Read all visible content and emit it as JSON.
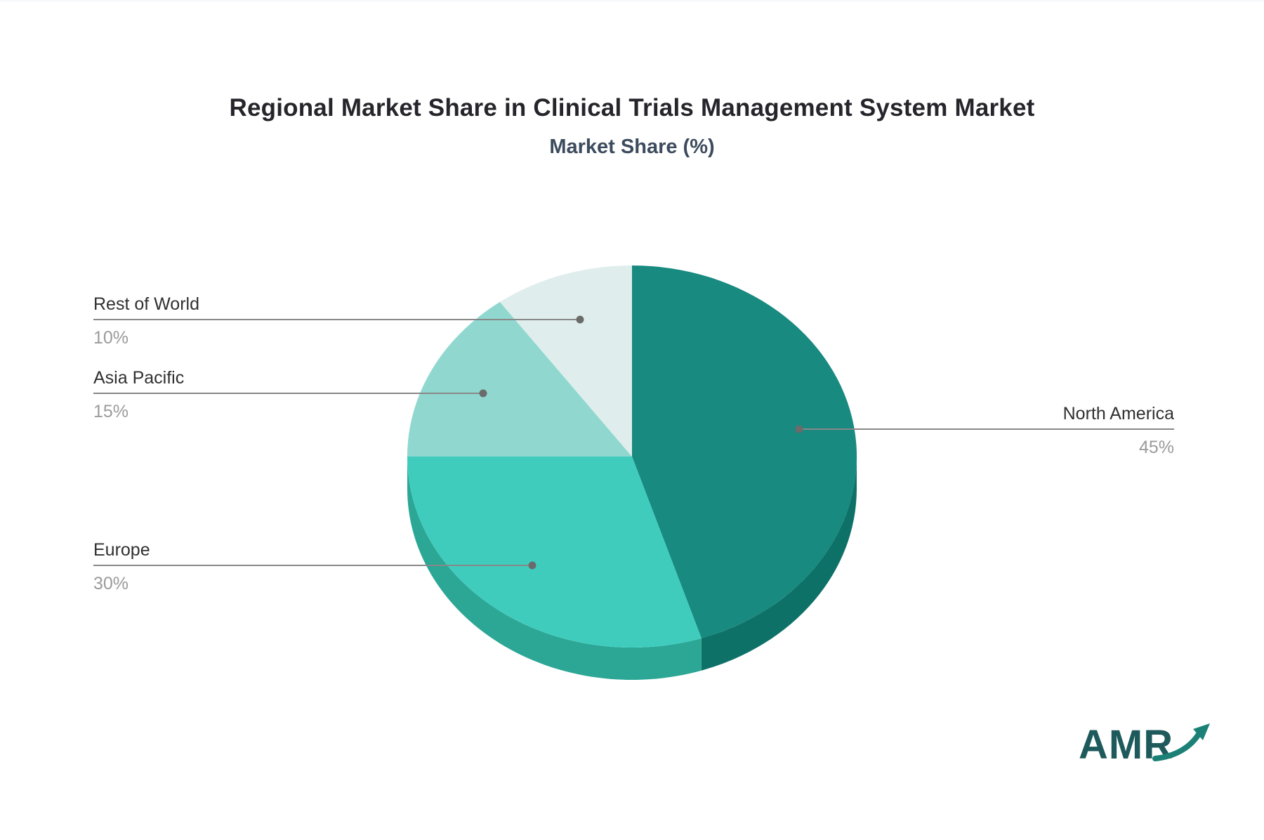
{
  "header": {
    "title": "Regional Market Share in Clinical Trials Management System Market",
    "subtitle": "Market Share (%)"
  },
  "chart_data": {
    "type": "pie",
    "title": "Regional Market Share in Clinical Trials Management System Market",
    "subtitle": "Market Share (%)",
    "unit": "%",
    "style": "3d-pie",
    "start_angle_deg": 0,
    "direction": "clockwise",
    "legend_position": "none",
    "categories": [
      "North America",
      "Europe",
      "Asia Pacific",
      "Rest of World"
    ],
    "values": [
      45,
      30,
      15,
      10
    ],
    "labels": [
      {
        "name": "North America",
        "value_label": "45%",
        "side": "right"
      },
      {
        "name": "Europe",
        "value_label": "30%",
        "side": "left"
      },
      {
        "name": "Asia Pacific",
        "value_label": "15%",
        "side": "left"
      },
      {
        "name": "Rest of World",
        "value_label": "10%",
        "side": "left"
      }
    ],
    "slice_colors": [
      "#188a80",
      "#3fccbd",
      "#90d8cf",
      "#dfeeec"
    ],
    "slice_side_colors": [
      "#0e7168",
      "#2ca795",
      "#7dc4bb",
      "#c5dcd9"
    ],
    "leader_line_color": "#888888",
    "leader_dot_color": "#6b6b6b",
    "name_text_color": "#303030",
    "value_text_color": "#9b9b9b",
    "background_color": "#ffffff"
  },
  "branding": {
    "logo_text": "AMR",
    "logo_text_color": "#1e5a5b",
    "logo_arrow_color": "#1b8076"
  }
}
